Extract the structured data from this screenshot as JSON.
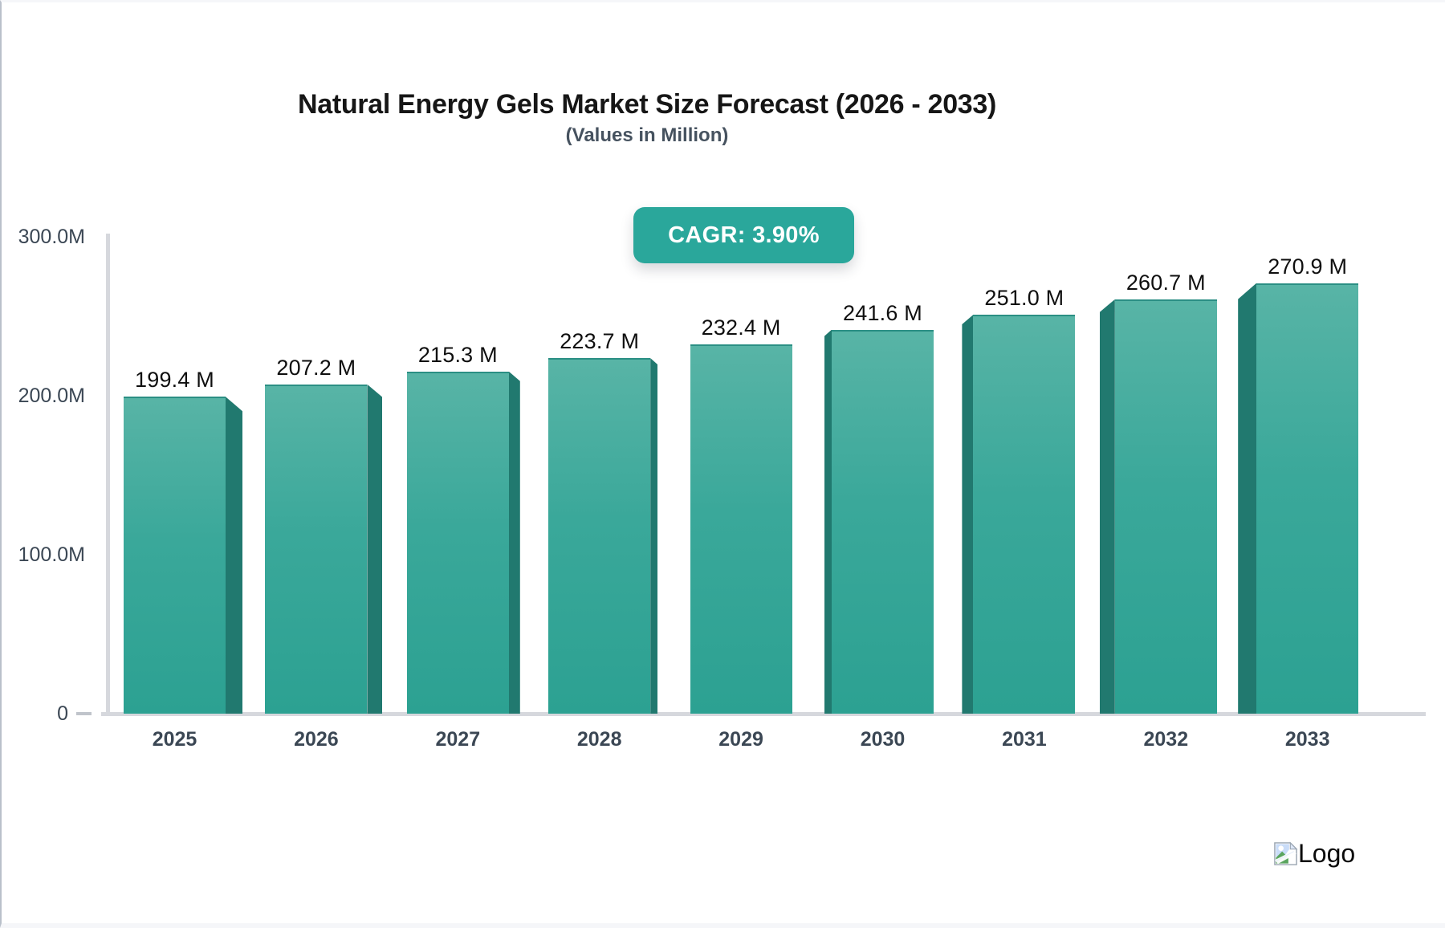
{
  "header": {
    "title": "Natural Energy Gels Market Size Forecast (2026 - 2033)",
    "subtitle": "(Values in Million)"
  },
  "badge": {
    "label": "CAGR: 3.90%",
    "bg_color": "#2aa79b"
  },
  "chart_data": {
    "type": "bar",
    "title": "Natural Energy Gels Market Size Forecast (2026 - 2033)",
    "subtitle": "(Values in Million)",
    "unit": "Million",
    "categories": [
      "2025",
      "2026",
      "2027",
      "2028",
      "2029",
      "2030",
      "2031",
      "2032",
      "2033"
    ],
    "values": [
      199.4,
      207.2,
      215.3,
      223.7,
      232.4,
      241.6,
      251.0,
      260.7,
      270.9
    ],
    "value_labels": [
      "199.4 M",
      "207.2 M",
      "215.3 M",
      "223.7 M",
      "232.4 M",
      "241.6 M",
      "251.0 M",
      "260.7 M",
      "270.9 M"
    ],
    "ylim": [
      0,
      300
    ],
    "yticks": [
      {
        "label": "300.0M",
        "value": 300,
        "has_dash": false
      },
      {
        "label": "200.0M",
        "value": 200,
        "has_dash": false
      },
      {
        "label": "100.0M",
        "value": 100,
        "has_dash": false
      },
      {
        "label": "0",
        "value": 0,
        "has_dash": true
      }
    ],
    "grid": "off",
    "legend": "none",
    "cagr_annotation": "CAGR: 3.90%",
    "colors": {
      "bar_face_top": "#58b4a6",
      "bar_face_bottom": "#2ca192",
      "bar_side": "#21796f",
      "axis": "#d6d8dd",
      "tick_text": "#3b4754",
      "value_text": "#0f0f0f",
      "accent": "#2aa79b"
    }
  },
  "footer": {
    "logo_label": "Logo"
  }
}
